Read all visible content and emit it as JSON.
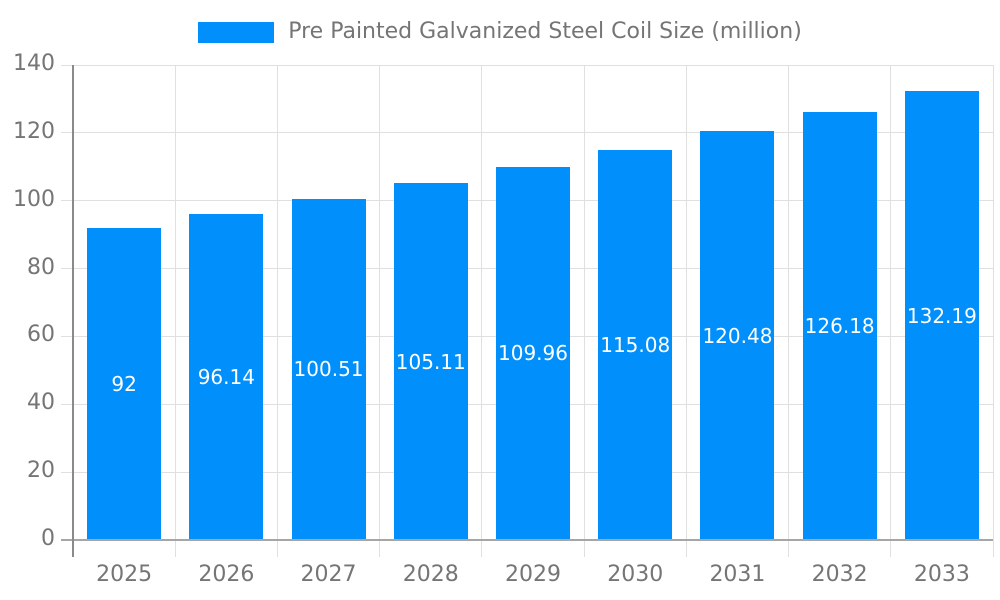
{
  "legend": {
    "label": "Pre Painted Galvanized Steel Coil Size (million)"
  },
  "chart_data": {
    "type": "bar",
    "title": "Pre Painted Galvanized Steel Coil Size (million)",
    "categories": [
      "2025",
      "2026",
      "2027",
      "2028",
      "2029",
      "2030",
      "2031",
      "2032",
      "2033"
    ],
    "series": [
      {
        "name": "Pre Painted Galvanized Steel Coil Size (million)",
        "values": [
          92,
          96.14,
          100.51,
          105.11,
          109.96,
          115.08,
          120.48,
          126.18,
          132.19
        ]
      }
    ],
    "data_labels": [
      "92",
      "96.14",
      "100.51",
      "105.11",
      "109.96",
      "115.08",
      "120.48",
      "126.18",
      "132.19"
    ],
    "xlabel": "",
    "ylabel": "",
    "ylim": [
      0,
      140
    ],
    "y_ticks": [
      0,
      20,
      40,
      60,
      80,
      100,
      120,
      140
    ],
    "grid": true,
    "legend_position": "top",
    "colors": {
      "bar": "#008FFB",
      "axis_text": "#757575",
      "grid_line": "#E0E0E0",
      "x_axis_line": "#A6A6A6",
      "y_axis_line": "#8A8A8A",
      "value_label": "#FFFFFF"
    }
  }
}
